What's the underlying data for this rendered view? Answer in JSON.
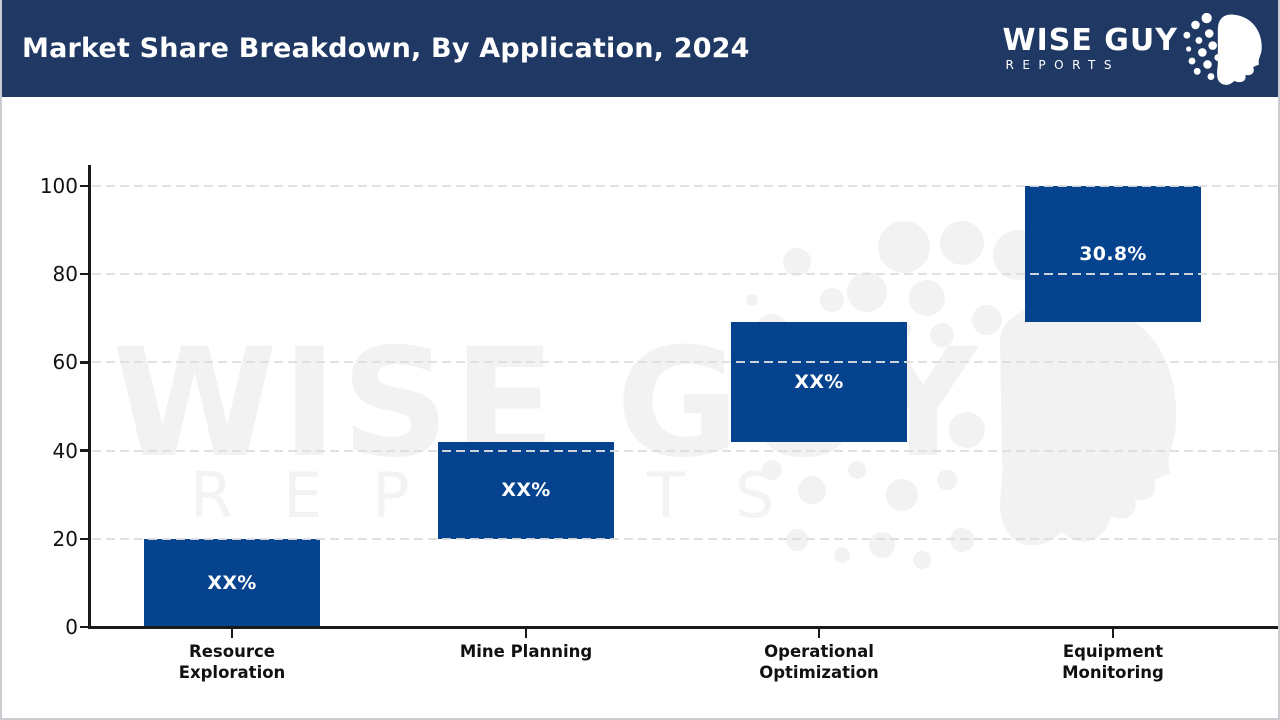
{
  "header": {
    "title": "Market Share Breakdown, By Application, 2024",
    "background_color": "#1f3864",
    "logo": {
      "name": "WISE GUY",
      "subtitle": "REPORTS"
    }
  },
  "watermark": {
    "name": "WISE GUY",
    "subtitle": "REPORTS"
  },
  "chart_data": {
    "type": "bar",
    "variant": "waterfall",
    "title": "Market Share Breakdown, By Application, 2024",
    "categories": [
      "Resource Exploration",
      "Mine Planning",
      "Operational Optimization",
      "Equipment Monitoring"
    ],
    "category_lines": [
      [
        "Resource",
        "Exploration"
      ],
      [
        "Mine Planning"
      ],
      [
        "Operational",
        "Optimization"
      ],
      [
        "Equipment",
        "Monitoring"
      ]
    ],
    "segments": [
      {
        "category": "Resource Exploration",
        "start": 0,
        "end": 20,
        "value": 20,
        "value_label": "XX%"
      },
      {
        "category": "Mine Planning",
        "start": 20,
        "end": 42,
        "value": 22,
        "value_label": "XX%"
      },
      {
        "category": "Operational Optimization",
        "start": 42,
        "end": 69.2,
        "value": 27.2,
        "value_label": "XX%"
      },
      {
        "category": "Equipment Monitoring",
        "start": 69.2,
        "end": 100,
        "value": 30.8,
        "value_label": "30.8%"
      }
    ],
    "xlabel": "",
    "ylabel": "",
    "ylim": [
      0,
      100
    ],
    "yticks": [
      0,
      20,
      40,
      60,
      80,
      100
    ],
    "grid": {
      "horizontal": true,
      "style": "dashed",
      "color": "#dedede",
      "drawn_above_bars": true
    },
    "legend": "none",
    "bar_color": "#05438f",
    "bar_label_color": "#ffffff",
    "axis_color": "#1a1a1a"
  }
}
